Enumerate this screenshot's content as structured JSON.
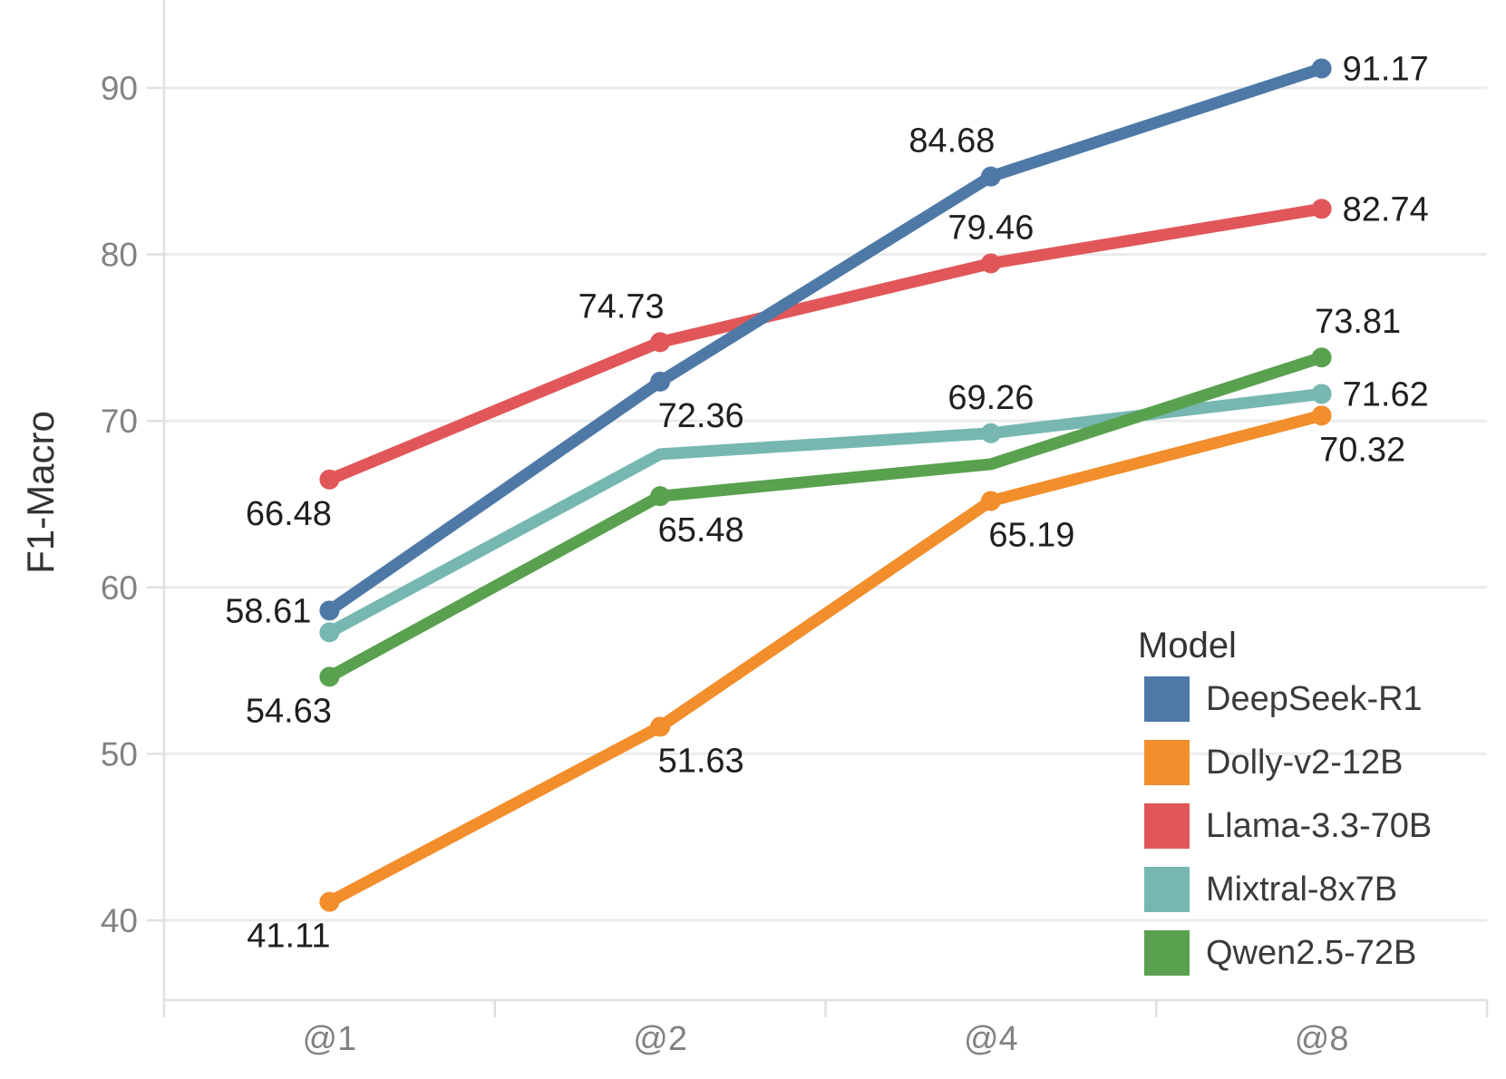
{
  "chart_data": {
    "type": "line",
    "title": "",
    "xlabel": "",
    "ylabel": "F1-Macro",
    "categories": [
      "@1",
      "@2",
      "@4",
      "@8"
    ],
    "yticks": [
      40,
      50,
      60,
      70,
      80,
      90
    ],
    "ylim": [
      35,
      95
    ],
    "grid": "horizontal",
    "legend_title": "Model",
    "legend_position": "inside-right-bottom",
    "series": [
      {
        "name": "DeepSeek-R1",
        "color": "#4e79a7",
        "values": [
          58.61,
          72.36,
          84.68,
          91.17
        ],
        "point_labels": [
          "58.61",
          "72.36",
          "84.68",
          "91.17"
        ],
        "label_positions": [
          "left",
          "below-right",
          "above-left",
          "right"
        ],
        "markers": [
          true,
          true,
          true,
          true
        ]
      },
      {
        "name": "Dolly-v2-12B",
        "color": "#f28e2b",
        "values": [
          41.11,
          51.63,
          65.19,
          70.32
        ],
        "point_labels": [
          "41.11",
          "51.63",
          "65.19",
          "70.32"
        ],
        "label_positions": [
          "below-left",
          "below-right",
          "below-right",
          "below-right"
        ],
        "markers": [
          true,
          true,
          true,
          true
        ]
      },
      {
        "name": "Llama-3.3-70B",
        "color": "#e15759",
        "values": [
          66.48,
          74.73,
          79.46,
          82.74
        ],
        "point_labels": [
          "66.48",
          "74.73",
          "79.46",
          "82.74"
        ],
        "label_positions": [
          "below-left",
          "above-left",
          "above",
          "right"
        ],
        "markers": [
          true,
          true,
          true,
          true
        ]
      },
      {
        "name": "Mixtral-8x7B",
        "color": "#76b7b2",
        "values": [
          57.3,
          68.0,
          69.26,
          71.62
        ],
        "point_labels": [
          null,
          null,
          "69.26",
          "71.62"
        ],
        "label_positions": [
          null,
          null,
          "above",
          "right"
        ],
        "markers": [
          true,
          false,
          true,
          true
        ]
      },
      {
        "name": "Qwen2.5-72B",
        "color": "#59a14f",
        "values": [
          54.63,
          65.48,
          67.4,
          73.81
        ],
        "point_labels": [
          "54.63",
          "65.48",
          null,
          "73.81"
        ],
        "label_positions": [
          "below-left",
          "below-right",
          null,
          "above-right"
        ],
        "markers": [
          true,
          true,
          false,
          true
        ]
      }
    ]
  }
}
